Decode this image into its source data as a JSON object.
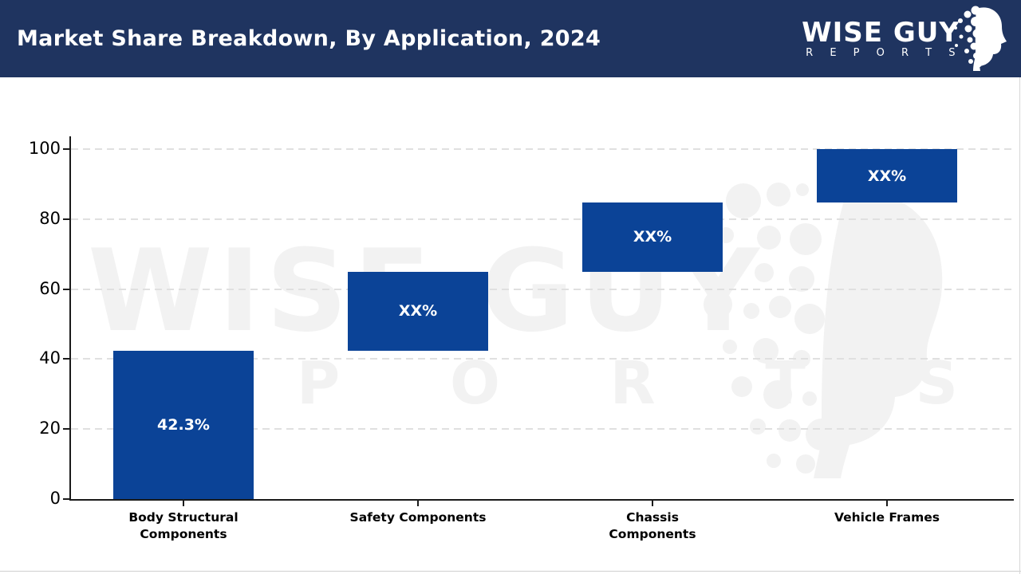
{
  "header": {
    "title": "Market Share Breakdown, By Application, 2024",
    "logo": {
      "line1": "WISE GUY",
      "line2": "R E P O R T S"
    }
  },
  "watermark": {
    "line1": "WISE GUY",
    "line2": "P O R T S"
  },
  "colors": {
    "header_bg": "#1f3460",
    "bar": "#0b4397",
    "grid": "#e0e0e0",
    "axis": "#1a1a1a",
    "bar_label_text": "#ffffff",
    "watermark": "#f2f2f2"
  },
  "chart_data": {
    "type": "bar",
    "subtype": "floating-waterfall",
    "title": "Market Share Breakdown, By Application, 2024",
    "categories": [
      "Body Structural Components",
      "Safety Components",
      "Chassis Components",
      "Vehicle Frames"
    ],
    "series": [
      {
        "name": "Market Share",
        "segments": [
          {
            "start": 0,
            "end": 42.3,
            "label": "42.3%"
          },
          {
            "start": 42.3,
            "end": 65,
            "label": "XX%"
          },
          {
            "start": 65,
            "end": 84.7,
            "label": "XX%"
          },
          {
            "start": 84.7,
            "end": 100,
            "label": "XX%"
          }
        ]
      }
    ],
    "bar_labels": [
      "42.3%",
      "XX%",
      "XX%",
      "XX%"
    ],
    "xlabel": "",
    "ylabel": "",
    "ylim": [
      0,
      100
    ],
    "yticks": [
      0,
      20,
      40,
      60,
      80,
      100
    ],
    "grid": "horizontal-dashed",
    "legend": "none"
  }
}
